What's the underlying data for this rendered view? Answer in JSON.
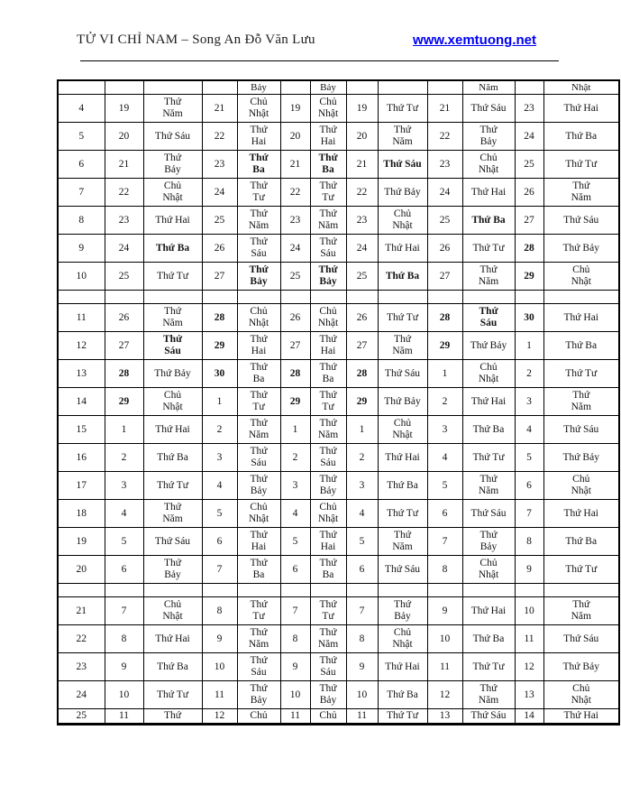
{
  "header": {
    "title": "TỬ VI CHỈ NAM – Song An Đỗ Văn Lưu",
    "link": "www.xemtuong.net",
    "link_color": "#0000f5"
  },
  "table": {
    "partial_row": [
      "",
      "",
      "",
      "",
      "Bảy",
      "",
      "Bảy",
      "",
      "",
      "",
      "Năm",
      "",
      "Nhật"
    ],
    "rows": [
      {
        "cells": [
          "4",
          "19",
          "Thứ\nNăm",
          "21",
          "Chủ\nNhật",
          "19",
          "Chủ\nNhật",
          "19",
          "Thứ Tư",
          "21",
          "Thứ Sáu",
          "23",
          "Thứ Hai"
        ],
        "bold": []
      },
      {
        "cells": [
          "5",
          "20",
          "Thứ Sáu",
          "22",
          "Thứ\nHai",
          "20",
          "Thứ\nHai",
          "20",
          "Thứ\nNăm",
          "22",
          "Thứ\nBảy",
          "24",
          "Thứ Ba"
        ],
        "bold": []
      },
      {
        "cells": [
          "6",
          "21",
          "Thứ\nBảy",
          "23",
          "Thứ\nBa",
          "21",
          "Thứ\nBa",
          "21",
          "Thứ Sáu",
          "23",
          "Chủ\nNhật",
          "25",
          "Thứ Tư"
        ],
        "bold": [
          4,
          6,
          8
        ]
      },
      {
        "cells": [
          "7",
          "22",
          "Chủ\nNhật",
          "24",
          "Thứ\nTư",
          "22",
          "Thứ\nTư",
          "22",
          "Thứ Bảy",
          "24",
          "Thứ Hai",
          "26",
          "Thứ\nNăm"
        ],
        "bold": []
      },
      {
        "cells": [
          "8",
          "23",
          "Thứ Hai",
          "25",
          "Thứ\nNăm",
          "23",
          "Thứ\nNăm",
          "23",
          "Chủ\nNhật",
          "25",
          "Thứ Ba",
          "27",
          "Thứ Sáu"
        ],
        "bold": [
          10
        ]
      },
      {
        "cells": [
          "9",
          "24",
          "Thứ Ba",
          "26",
          "Thứ\nSáu",
          "24",
          "Thứ\nSáu",
          "24",
          "Thứ Hai",
          "26",
          "Thứ Tư",
          "28",
          "Thứ Bảy"
        ],
        "bold": [
          2,
          11
        ]
      },
      {
        "cells": [
          "10",
          "25",
          "Thứ Tư",
          "27",
          "Thứ\nBảy",
          "25",
          "Thứ\nBảy",
          "25",
          "Thứ Ba",
          "27",
          "Thứ\nNăm",
          "29",
          "Chủ\nNhật"
        ],
        "bold": [
          4,
          6,
          8,
          11
        ]
      },
      {
        "sep": true
      },
      {
        "cells": [
          "11",
          "26",
          "Thứ\nNăm",
          "28",
          "Chủ\nNhật",
          "26",
          "Chủ\nNhật",
          "26",
          "Thứ Tư",
          "28",
          "Thứ\nSáu",
          "30",
          "Thứ Hai"
        ],
        "bold": [
          3,
          9,
          10,
          11
        ]
      },
      {
        "cells": [
          "12",
          "27",
          "Thứ\nSáu",
          "29",
          "Thứ\nHai",
          "27",
          "Thứ\nHai",
          "27",
          "Thứ\nNăm",
          "29",
          "Thứ Bảy",
          "1",
          "Thứ Ba"
        ],
        "bold": [
          2,
          3,
          9
        ]
      },
      {
        "cells": [
          "13",
          "28",
          "Thứ Bảy",
          "30",
          "Thứ\nBa",
          "28",
          "Thứ\nBa",
          "28",
          "Thứ Sáu",
          "1",
          "Chủ\nNhật",
          "2",
          "Thứ Tư"
        ],
        "bold": [
          1,
          3,
          5,
          7
        ]
      },
      {
        "cells": [
          "14",
          "29",
          "Chủ\nNhật",
          "1",
          "Thứ\nTư",
          "29",
          "Thứ\nTư",
          "29",
          "Thứ Bảy",
          "2",
          "Thứ Hai",
          "3",
          "Thứ\nNăm"
        ],
        "bold": [
          1,
          5,
          7
        ]
      },
      {
        "cells": [
          "15",
          "1",
          "Thứ Hai",
          "2",
          "Thứ\nNăm",
          "1",
          "Thứ\nNăm",
          "1",
          "Chủ\nNhật",
          "3",
          "Thứ Ba",
          "4",
          "Thứ Sáu"
        ],
        "bold": []
      },
      {
        "cells": [
          "16",
          "2",
          "Thứ Ba",
          "3",
          "Thứ\nSáu",
          "2",
          "Thứ\nSáu",
          "2",
          "Thứ Hai",
          "4",
          "Thứ Tư",
          "5",
          "Thứ Bảy"
        ],
        "bold": []
      },
      {
        "cells": [
          "17",
          "3",
          "Thứ Tư",
          "4",
          "Thứ\nBảy",
          "3",
          "Thứ\nBảy",
          "3",
          "Thứ Ba",
          "5",
          "Thứ\nNăm",
          "6",
          "Chủ\nNhật"
        ],
        "bold": []
      },
      {
        "cells": [
          "18",
          "4",
          "Thứ\nNăm",
          "5",
          "Chủ\nNhật",
          "4",
          "Chủ\nNhật",
          "4",
          "Thứ Tư",
          "6",
          "Thứ Sáu",
          "7",
          "Thứ Hai"
        ],
        "bold": []
      },
      {
        "cells": [
          "19",
          "5",
          "Thứ Sáu",
          "6",
          "Thứ\nHai",
          "5",
          "Thứ\nHai",
          "5",
          "Thứ\nNăm",
          "7",
          "Thứ\nBảy",
          "8",
          "Thứ Ba"
        ],
        "bold": []
      },
      {
        "cells": [
          "20",
          "6",
          "Thứ\nBảy",
          "7",
          "Thứ\nBa",
          "6",
          "Thứ\nBa",
          "6",
          "Thứ Sáu",
          "8",
          "Chủ\nNhật",
          "9",
          "Thứ Tư"
        ],
        "bold": []
      },
      {
        "sep": true
      },
      {
        "cells": [
          "21",
          "7",
          "Chủ\nNhật",
          "8",
          "Thứ\nTư",
          "7",
          "Thứ\nTư",
          "7",
          "Thứ\nBảy",
          "9",
          "Thứ Hai",
          "10",
          "Thứ\nNăm"
        ],
        "bold": []
      },
      {
        "cells": [
          "22",
          "8",
          "Thứ Hai",
          "9",
          "Thứ\nNăm",
          "8",
          "Thứ\nNăm",
          "8",
          "Chủ\nNhật",
          "10",
          "Thứ Ba",
          "11",
          "Thứ Sáu"
        ],
        "bold": []
      },
      {
        "cells": [
          "23",
          "9",
          "Thứ Ba",
          "10",
          "Thứ\nSáu",
          "9",
          "Thứ\nSáu",
          "9",
          "Thứ Hai",
          "11",
          "Thứ Tư",
          "12",
          "Thứ Bảy"
        ],
        "bold": []
      },
      {
        "cells": [
          "24",
          "10",
          "Thứ Tư",
          "11",
          "Thứ\nBảy",
          "10",
          "Thứ\nBảy",
          "10",
          "Thứ Ba",
          "12",
          "Thứ\nNăm",
          "13",
          "Chủ\nNhật"
        ],
        "bold": []
      },
      {
        "cells": [
          "25",
          "11",
          "Thứ",
          "12",
          "Chủ",
          "11",
          "Chủ",
          "11",
          "Thứ Tư",
          "13",
          "Thứ Sáu",
          "14",
          "Thứ Hai"
        ],
        "bold": [],
        "clip": true
      }
    ]
  }
}
